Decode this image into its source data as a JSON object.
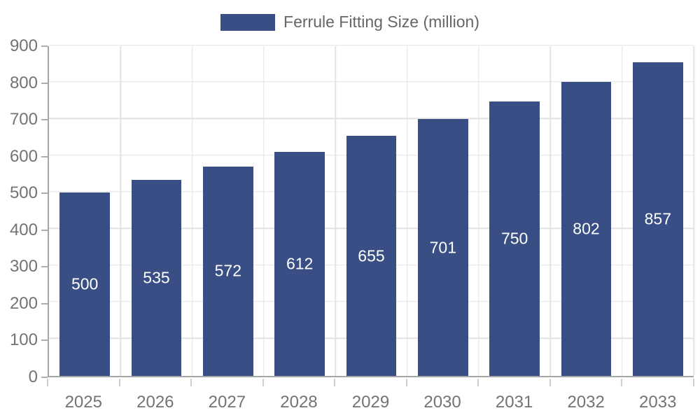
{
  "legend": {
    "label": "Ferrule Fitting Size (million)"
  },
  "chart_data": {
    "type": "bar",
    "title": "Ferrule Fitting Size (million)",
    "categories": [
      "2025",
      "2026",
      "2027",
      "2028",
      "2029",
      "2030",
      "2031",
      "2032",
      "2033"
    ],
    "series": [
      {
        "name": "Ferrule Fitting Size (million)",
        "values": [
          500,
          535,
          572,
          612,
          655,
          701,
          750,
          802,
          857
        ]
      }
    ],
    "xlabel": "",
    "ylabel": "",
    "ylim": [
      0,
      900
    ],
    "ytick_interval": 100,
    "yticks": [
      0,
      100,
      200,
      300,
      400,
      500,
      600,
      700,
      800,
      900
    ],
    "grid": true,
    "legend_position": "top-center",
    "value_labels": "inside-center",
    "colors": {
      "bar": "#384E84",
      "value_label": "#FFFFFF",
      "axis_line": "#A6A6A6",
      "gridline": "#E3E3E3",
      "tick_label": "#737373",
      "legend_text": "#666666",
      "background": "#FFFFFF"
    }
  }
}
